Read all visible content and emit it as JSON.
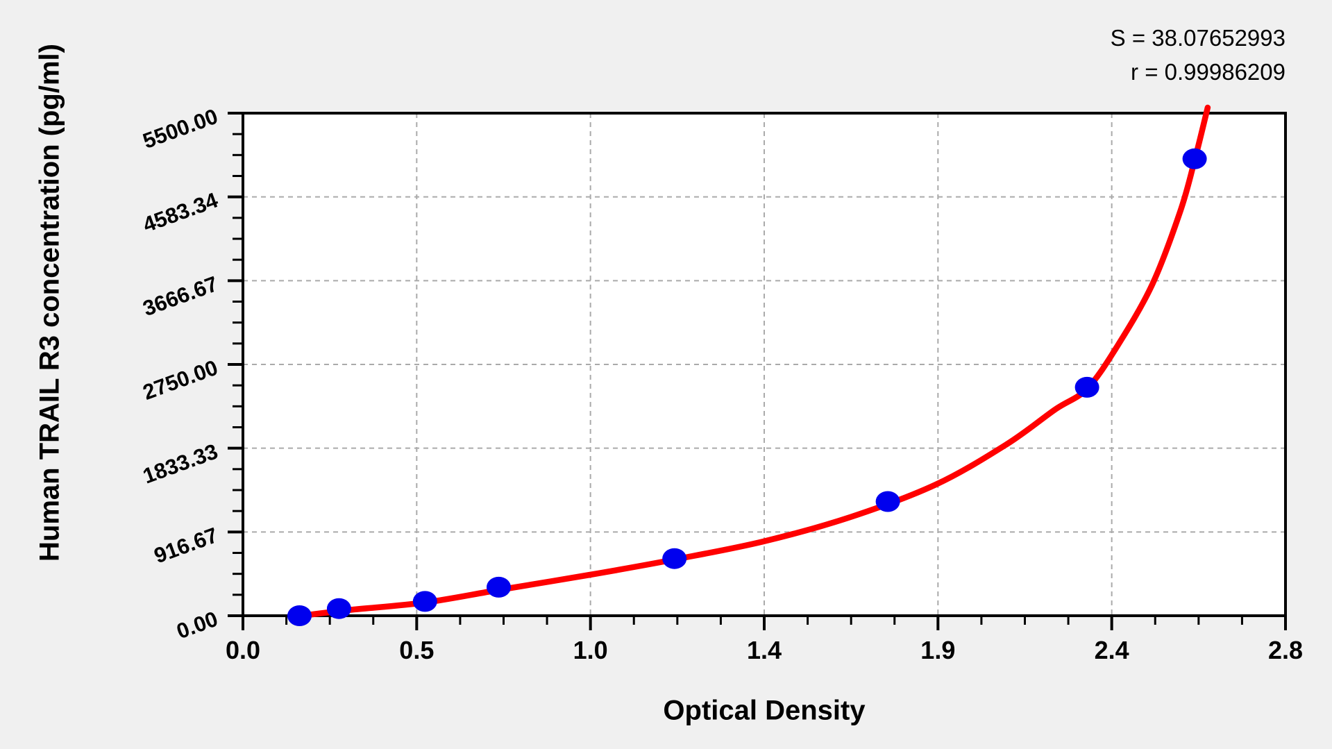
{
  "figure": {
    "background_color": "#f0f0f0",
    "plot_background_color": "#ffffff",
    "axis_color": "#000000",
    "text_color": "#000000"
  },
  "chart_data": {
    "type": "scatter",
    "title": "",
    "xlabel": "Optical Density",
    "ylabel": "Human TRAIL R3 concentration (pg/ml)",
    "annotations": [
      "S = 38.07652993",
      "r = 0.99986209"
    ],
    "legend": {
      "show": false
    },
    "grid": {
      "show": true,
      "style": "dashed",
      "color": "#aaaaaa"
    },
    "x_axis": {
      "min": 0,
      "max": 2.8,
      "tick_labels": [
        "0.0",
        "0.5",
        "1.0",
        "1.4",
        "1.9",
        "2.4",
        "2.8"
      ],
      "minor_ticks_between_majors": 3
    },
    "y_axis": {
      "min": 0,
      "max": 5500,
      "tick_labels_top_to_bottom": [
        "5500.00",
        "4583.34",
        "3666.67",
        "2750.00",
        "1833.33",
        "916.67",
        "0.00"
      ],
      "tick_values_top_to_bottom": [
        5500,
        4583.34,
        3666.67,
        2750,
        1833.33,
        916.67,
        0
      ],
      "minor_ticks_between_majors": 3
    },
    "points": {
      "color": "#0000ee",
      "marker": "ellipse",
      "data": [
        {
          "od": 0.152,
          "concentration": 0
        },
        {
          "od": 0.258,
          "concentration": 78.125
        },
        {
          "od": 0.489,
          "concentration": 156.25
        },
        {
          "od": 0.687,
          "concentration": 312.5
        },
        {
          "od": 1.159,
          "concentration": 625
        },
        {
          "od": 1.732,
          "concentration": 1250
        },
        {
          "od": 2.267,
          "concentration": 2500
        },
        {
          "od": 2.556,
          "concentration": 5000
        }
      ]
    },
    "fit_curve": {
      "color": "#ff0000",
      "samples_od_conc": [
        [
          0.13,
          -15
        ],
        [
          0.28,
          61
        ],
        [
          0.488,
          144
        ],
        [
          0.686,
          281
        ],
        [
          0.932,
          448
        ],
        [
          1.159,
          615
        ],
        [
          1.398,
          813
        ],
        [
          1.631,
          1079
        ],
        [
          1.861,
          1436
        ],
        [
          2.051,
          1876
        ],
        [
          2.181,
          2256
        ],
        [
          2.267,
          2484
        ],
        [
          2.349,
          2955
        ],
        [
          2.442,
          3624
        ],
        [
          2.517,
          4421
        ],
        [
          2.556,
          4984
        ],
        [
          2.591,
          5561
        ]
      ]
    }
  }
}
